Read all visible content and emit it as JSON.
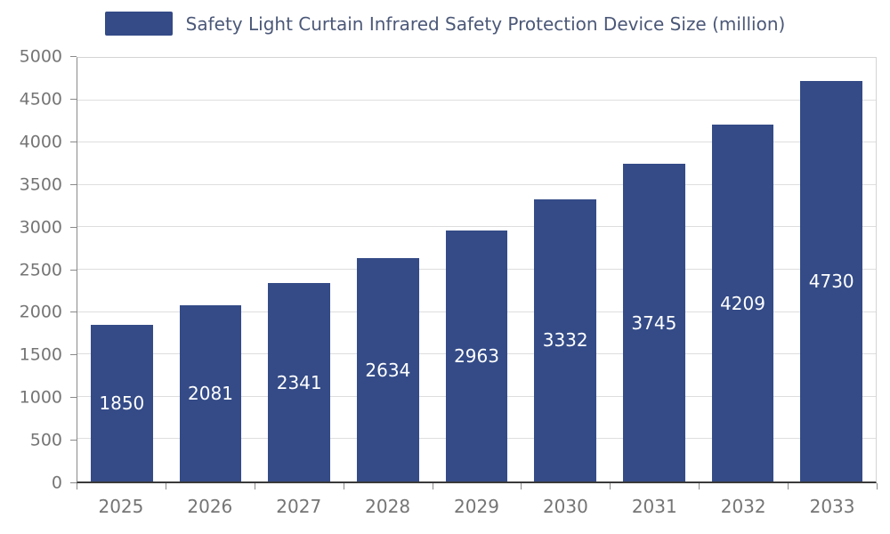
{
  "colors": {
    "bar": "#344b87",
    "title_text": "#4b5878",
    "axis_text": "#757575",
    "grid": "#dedede"
  },
  "chart_data": {
    "type": "bar",
    "title": "Safety Light Curtain Infrared Safety Protection Device Size (million)",
    "categories": [
      "2025",
      "2026",
      "2027",
      "2028",
      "2029",
      "2030",
      "2031",
      "2032",
      "2033"
    ],
    "values": [
      1850,
      2081,
      2341,
      2634,
      2963,
      3332,
      3745,
      4209,
      4730
    ],
    "xlabel": "",
    "ylabel": "",
    "ylim": [
      0,
      5000
    ],
    "yticks": [
      0,
      500,
      1000,
      1500,
      2000,
      2500,
      3000,
      3500,
      4000,
      4500,
      5000
    ],
    "grid": true,
    "legend_position": "top-center",
    "value_labels": "inside-center-white"
  }
}
